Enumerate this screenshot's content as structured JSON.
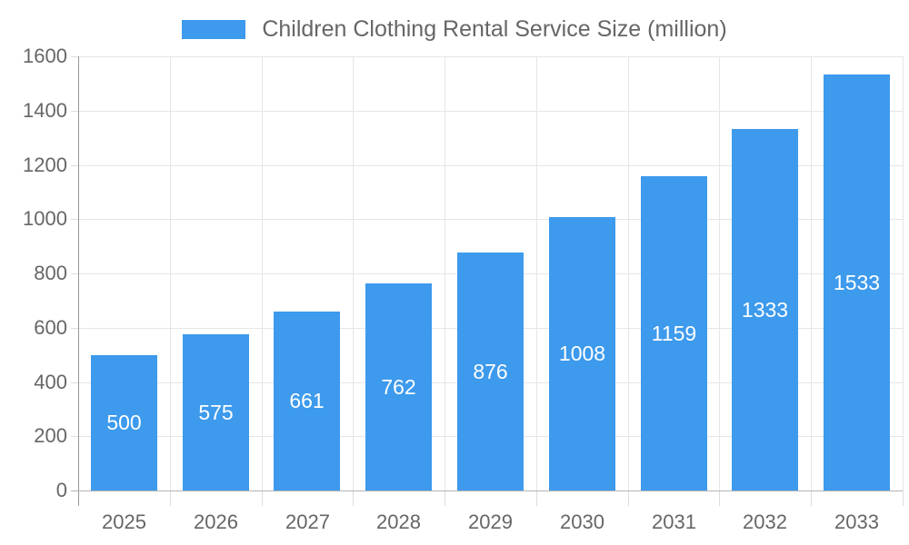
{
  "legend": {
    "label": "Children Clothing Rental Service Size (million)",
    "swatch_color": "#3D9AEC"
  },
  "chart_data": {
    "type": "bar",
    "title": "Children Clothing Rental Service Size (million)",
    "categories": [
      "2025",
      "2026",
      "2027",
      "2028",
      "2029",
      "2030",
      "2031",
      "2032",
      "2033"
    ],
    "series": [
      {
        "name": "Children Clothing Rental Service Size (million)",
        "values": [
          500,
          575,
          661,
          762,
          876,
          1008,
          1159,
          1333,
          1533
        ]
      }
    ],
    "xlabel": "",
    "ylabel": "",
    "ylim": [
      0,
      1600
    ],
    "yticks": [
      0,
      200,
      400,
      600,
      800,
      1000,
      1200,
      1400,
      1600
    ],
    "grid": true,
    "bar_value_labels": "inside-center",
    "legend_position": "top-center",
    "colors": {
      "bar": "#3D9AEC",
      "bar_label": "#FFFFFF",
      "axis_text": "#666666",
      "grid_line": "#E6E6E6",
      "y_axis_line": "#999999",
      "x_axis_line": "#B3B3B3",
      "minor_tick": "#DDDDDD"
    }
  }
}
